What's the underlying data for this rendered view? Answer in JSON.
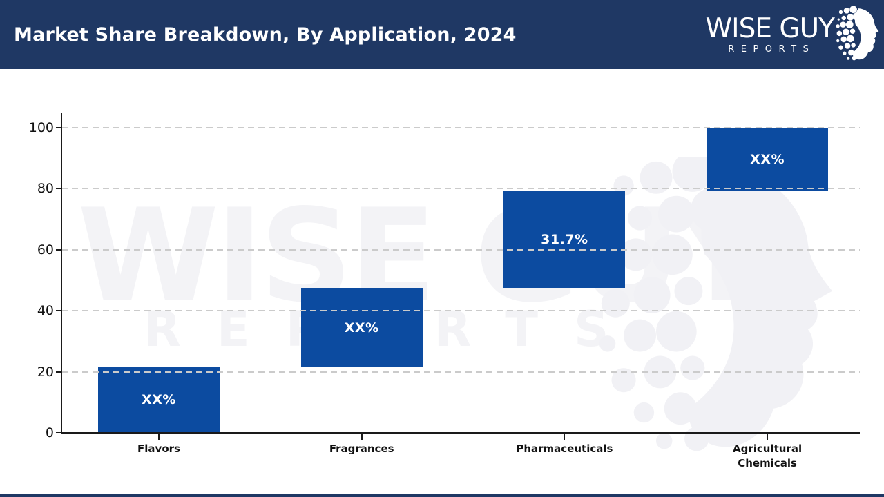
{
  "header": {
    "title": "Market Share Breakdown, By Application, 2024",
    "logo": {
      "wordmark": "WISE GUY",
      "subtext": "REPORTS"
    }
  },
  "watermark": {
    "wordmark": "WISE GUY",
    "subtext": "REPORTS"
  },
  "chart_data": {
    "type": "waterfall",
    "title": "Market Share Breakdown, By Application, 2024",
    "categories": [
      "Flavors",
      "Fragrances",
      "Pharmaceuticals",
      "Agricultural Chemicals"
    ],
    "series": [
      {
        "category": "Flavors",
        "start": 0,
        "end": 21.5,
        "value_label": "XX%"
      },
      {
        "category": "Fragrances",
        "start": 21.5,
        "end": 47.5,
        "value_label": "XX%"
      },
      {
        "category": "Pharmaceuticals",
        "start": 47.5,
        "end": 79.2,
        "value_label": "31.7%"
      },
      {
        "category": "Agricultural Chemicals",
        "start": 79.2,
        "end": 100,
        "value_label": "XX%"
      }
    ],
    "yticks": [
      0,
      20,
      40,
      60,
      80,
      100
    ],
    "ylim": [
      0,
      105
    ],
    "xlabel": "",
    "ylabel": "",
    "grid": {
      "horizontal": true,
      "style": "dashed"
    },
    "legend": "none",
    "colors": {
      "bar": "#0C4BA0",
      "header_bg": "#1F3864",
      "grid": "#CBCBCB",
      "axis": "#1A1A1A",
      "bar_label_text": "#FFFFFF",
      "watermark": "#F3F3F6"
    }
  }
}
